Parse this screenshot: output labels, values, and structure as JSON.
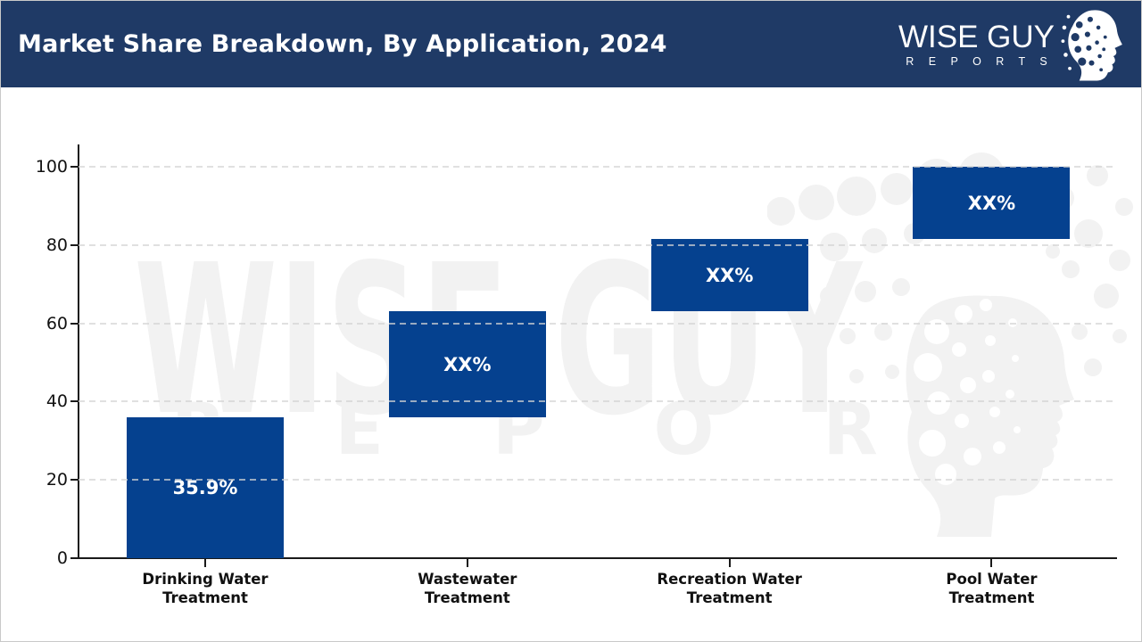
{
  "header": {
    "title": "Market Share Breakdown, By Application, 2024",
    "logo": {
      "primary": "WISE GUY",
      "secondary": "R E P O R T S"
    }
  },
  "watermark": {
    "primary": "WISE GUY",
    "secondary": "R E P O R T S"
  },
  "colors": {
    "header_bg": "#1f3a66",
    "bar_fill": "#05418f",
    "bar_label_text": "#ffffff",
    "axis": "#1a1a1a",
    "grid": "#d4d4d4",
    "watermark": "#f2f2f2"
  },
  "chart_data": {
    "type": "bar",
    "variant": "floating cumulative percent segments (waterfall to 100%)",
    "title": "Market Share Breakdown, By Application, 2024",
    "xlabel": "",
    "ylabel": "",
    "ylim": [
      0,
      106
    ],
    "yticks": [
      0,
      20,
      40,
      60,
      80,
      100
    ],
    "grid": "horizontal dashed, drawn over bars",
    "legend": "none",
    "categories": [
      "Drinking Water Treatment",
      "Wastewater Treatment",
      "Recreation Water Treatment",
      "Pool Water Treatment"
    ],
    "category_lines": [
      [
        "Drinking Water",
        "Treatment"
      ],
      [
        "Wastewater",
        "Treatment"
      ],
      [
        "Recreation Water",
        "Treatment"
      ],
      [
        "Pool Water",
        "Treatment"
      ]
    ],
    "segments": [
      {
        "category": "Drinking Water Treatment",
        "start": 0,
        "end": 35.9,
        "label": "35.9%"
      },
      {
        "category": "Wastewater Treatment",
        "start": 35.9,
        "end": 63.1,
        "label": "XX%"
      },
      {
        "category": "Recreation Water Treatment",
        "start": 63.1,
        "end": 81.5,
        "label": "XX%"
      },
      {
        "category": "Pool Water Treatment",
        "start": 81.5,
        "end": 100,
        "label": "XX%"
      }
    ]
  }
}
